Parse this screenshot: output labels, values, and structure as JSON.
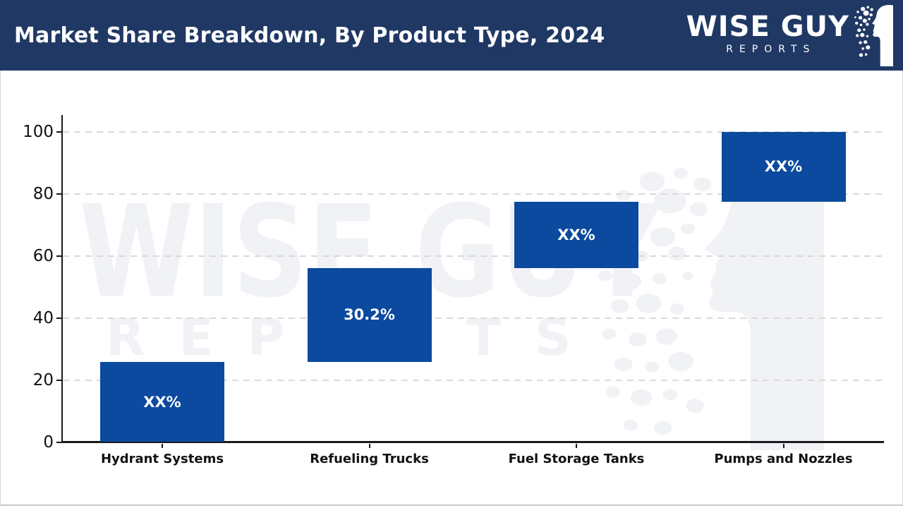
{
  "header": {
    "title": "Market Share Breakdown, By Product Type, 2024",
    "logo": {
      "line1": "WISE GUY",
      "line2": "REPORTS"
    }
  },
  "watermark": {
    "line1": "WISE GUY",
    "line2": "REPORTS"
  },
  "colors": {
    "header_bg": "#203864",
    "bar": "#0b4a9f",
    "bar_label_text": "#ffffff",
    "title_text": "#ffffff",
    "grid_line": "#d9d9d9",
    "axis_line": "#1a1a1a",
    "tick_label_text": "#111111",
    "category_label_text": "#111111",
    "watermark_color": "#f1f2f5"
  },
  "chart_data": {
    "type": "waterfall",
    "title": "Market Share Breakdown, By Product Type, 2024",
    "categories": [
      "Hydrant Systems",
      "Refueling Trucks",
      "Fuel Storage Tanks",
      "Pumps and Nozzles"
    ],
    "segments": [
      {
        "category": "Hydrant Systems",
        "start": 0,
        "end": 25.9,
        "value": 25.9,
        "value_label": "XX%"
      },
      {
        "category": "Refueling Trucks",
        "start": 25.9,
        "end": 56.1,
        "value": 30.2,
        "value_label": "30.2%"
      },
      {
        "category": "Fuel Storage Tanks",
        "start": 56.1,
        "end": 77.5,
        "value": 21.4,
        "value_label": "XX%"
      },
      {
        "category": "Pumps and Nozzles",
        "start": 77.5,
        "end": 100,
        "value": 22.5,
        "value_label": "XX%"
      }
    ],
    "yticks": [
      0,
      20,
      40,
      60,
      80,
      100
    ],
    "ylim": [
      0,
      100
    ],
    "xlabel": "",
    "ylabel": "",
    "grid": "horizontal-dashed",
    "legend": "none"
  }
}
